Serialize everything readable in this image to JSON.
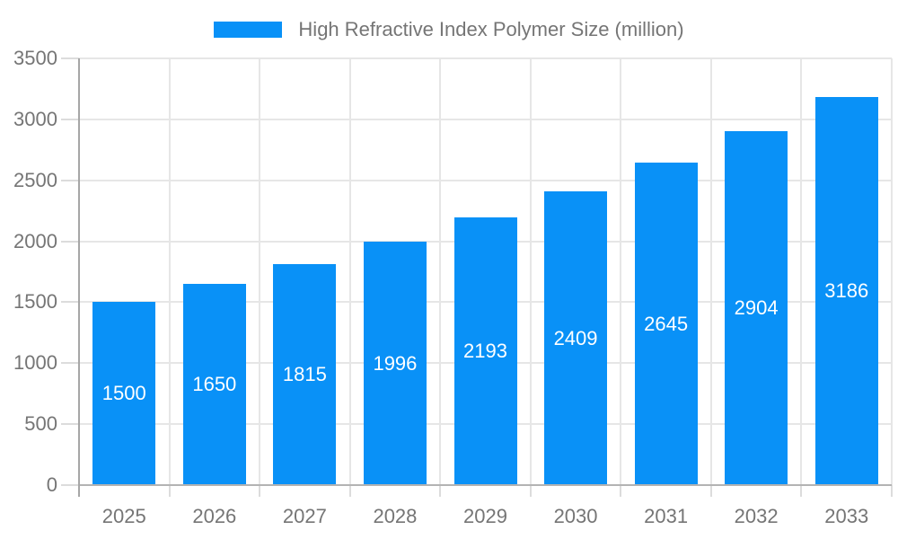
{
  "legend": {
    "label": "High Refractive Index Polymer Size (million)"
  },
  "chart_data": {
    "type": "bar",
    "title": "High Refractive Index Polymer Size (million)",
    "categories": [
      "2025",
      "2026",
      "2027",
      "2028",
      "2029",
      "2030",
      "2031",
      "2032",
      "2033"
    ],
    "values": [
      1500,
      1650,
      1815,
      1996,
      2193,
      2409,
      2645,
      2904,
      3186
    ],
    "xlabel": "",
    "ylabel": "",
    "ylim": [
      0,
      3500
    ],
    "yticks": [
      0,
      500,
      1000,
      1500,
      2000,
      2500,
      3000,
      3500
    ],
    "grid": true,
    "legend_position": "top-center",
    "bar_label_position": "inside-center",
    "colors": {
      "bar": "#0991f7",
      "bar_label": "#ffffff",
      "grid": "#e6e6e6",
      "tick": "#dcdcdc",
      "axis_line": "#a6a6a6",
      "baseline": "#b3b3b3",
      "text": "#757575"
    }
  }
}
